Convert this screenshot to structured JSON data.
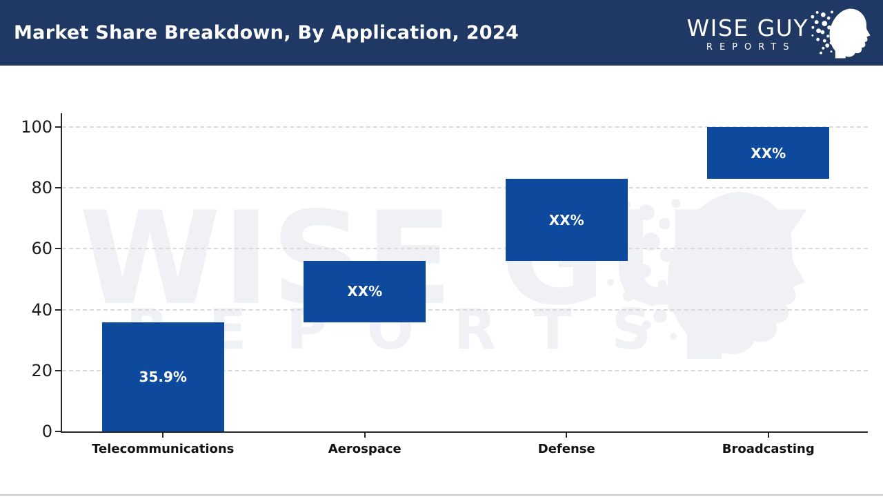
{
  "header": {
    "title": "Market Share Breakdown, By Application, 2024",
    "logo": {
      "line1": "WISE GUY",
      "line2": "REPORTS"
    }
  },
  "watermark": {
    "line1": "WISE GUY",
    "line2": "REPORTS"
  },
  "chart_data": {
    "type": "bar",
    "variant": "stacked-waterfall",
    "title": "Market Share Breakdown, By Application, 2024",
    "xlabel": "",
    "ylabel": "",
    "categories": [
      "Telecommunications",
      "Aerospace",
      "Defense",
      "Broadcasting"
    ],
    "segments": [
      {
        "category": "Telecommunications",
        "start": 0,
        "end": 35.9,
        "value": 35.9,
        "label": "35.9%"
      },
      {
        "category": "Aerospace",
        "start": 35.9,
        "end": 56,
        "value": 20.1,
        "label": "XX%"
      },
      {
        "category": "Defense",
        "start": 56,
        "end": 83,
        "value": 27,
        "label": "XX%"
      },
      {
        "category": "Broadcasting",
        "start": 83,
        "end": 100,
        "value": 17,
        "label": "XX%"
      }
    ],
    "y_ticks": [
      0,
      20,
      40,
      60,
      80,
      100
    ],
    "ylim": [
      0,
      105
    ],
    "grid": "horizontal-dashed",
    "legend_position": "none"
  },
  "style": {
    "header_bg": "#203864",
    "bar_color": "#0d4a9e",
    "bar_label_color": "#ffffff",
    "grid_color": "#d9d9d9",
    "axis_color": "#262626",
    "tick_label_color": "#1a1a1a",
    "watermark_color": "#f0f1f4",
    "bottom_rule_color": "#c9c9c9"
  }
}
